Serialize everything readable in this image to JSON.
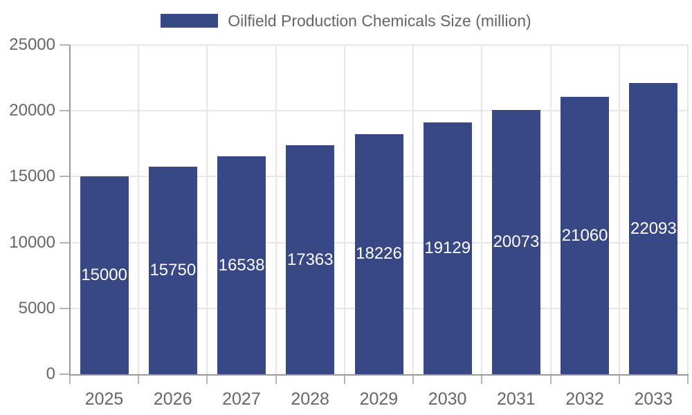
{
  "legend": {
    "label": "Oilfield Production Chemicals Size (million)"
  },
  "chart_data": {
    "type": "bar",
    "title": "",
    "xlabel": "",
    "ylabel": "",
    "series_name": "Oilfield Production Chemicals Size (million)",
    "categories": [
      "2025",
      "2026",
      "2027",
      "2028",
      "2029",
      "2030",
      "2031",
      "2032",
      "2033"
    ],
    "values": [
      15000,
      15750,
      16538,
      17363,
      18226,
      19129,
      20073,
      21060,
      22093
    ],
    "ylim": [
      0,
      25000
    ],
    "yticks": [
      0,
      5000,
      10000,
      15000,
      20000,
      25000
    ],
    "grid": true,
    "legend_position": "top-center",
    "colors": {
      "bar": "#374885",
      "value_label": "#ffffff",
      "axis_text": "#666666",
      "grid": "#e6e6e6",
      "axis_line": "#999999",
      "tick": "#b3b3b3",
      "background": "#ffffff"
    }
  }
}
